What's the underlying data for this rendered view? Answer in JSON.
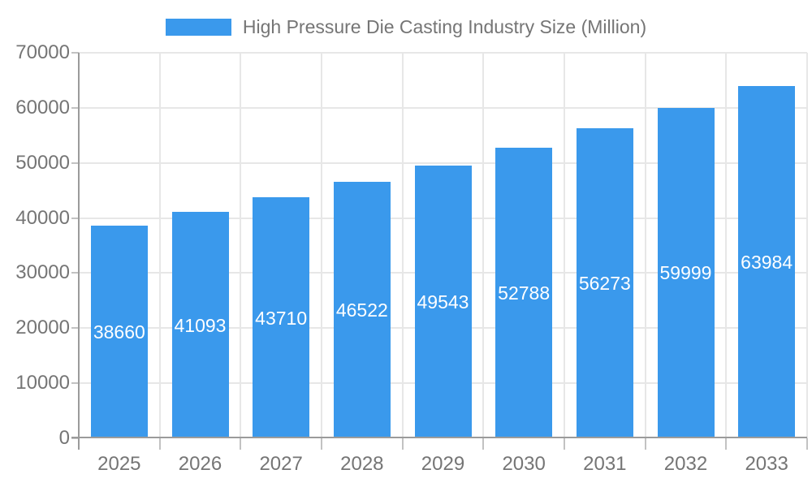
{
  "chart_data": {
    "type": "bar",
    "title": "High Pressure Die Casting Industry Size (Million)",
    "categories": [
      "2025",
      "2026",
      "2027",
      "2028",
      "2029",
      "2030",
      "2031",
      "2032",
      "2033"
    ],
    "series": [
      {
        "name": "High Pressure Die Casting Industry Size (Million)",
        "values": [
          38660,
          41093,
          43710,
          46522,
          49543,
          52788,
          56273,
          59999,
          63984
        ]
      }
    ],
    "xlabel": "",
    "ylabel": "",
    "ylim": [
      0,
      70000
    ],
    "yticks": [
      0,
      10000,
      20000,
      30000,
      40000,
      50000,
      60000,
      70000
    ],
    "grid": "horizontal gridlines at each y tick, vertical gridlines at category boundaries",
    "legend_position": "top-center",
    "bar_labels": "values shown in white, centered inside each bar",
    "colors": {
      "bar": "#3A99EC",
      "grid": "#E7E7E7",
      "axis": "#9B9B9B",
      "tick": "#C2C2C2",
      "text": "#757575",
      "bar_label": "#FFFFFF",
      "background": "#FFFFFF"
    }
  }
}
